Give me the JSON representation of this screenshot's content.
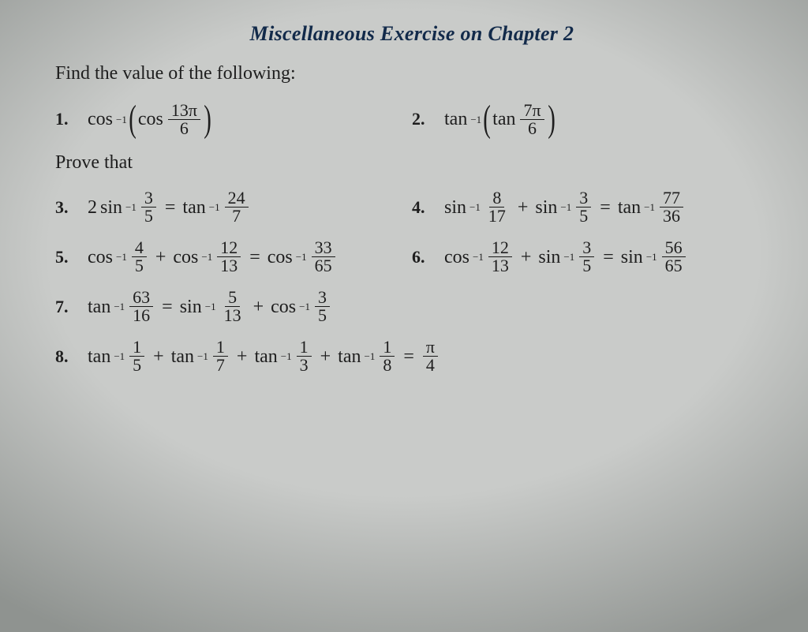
{
  "page": {
    "bg_color": "#c9cbc9",
    "vignette_color": "#8f9390",
    "text_color": "#1e1e1e",
    "title_color": "#122a4a",
    "frac_rule_color": "#1a1a1a"
  },
  "title": "Miscellaneous Exercise on Chapter 2",
  "instruction": "Find the value of the following:",
  "subheading": "Prove that",
  "problems": [
    {
      "n": "1.",
      "parts": [
        {
          "t": "fn",
          "v": "cos"
        },
        {
          "t": "sup",
          "v": "−1"
        },
        {
          "t": "lparen"
        },
        {
          "t": "fn",
          "v": "cos"
        },
        {
          "t": "frac",
          "nu": "13π",
          "de": "6"
        },
        {
          "t": "rparen"
        }
      ]
    },
    {
      "n": "2.",
      "parts": [
        {
          "t": "fn",
          "v": "tan"
        },
        {
          "t": "sup",
          "v": "−1"
        },
        {
          "t": "lparen"
        },
        {
          "t": "fn",
          "v": "tan"
        },
        {
          "t": "frac",
          "nu": "7π",
          "de": "6"
        },
        {
          "t": "rparen"
        }
      ]
    },
    {
      "n": "3.",
      "parts": [
        {
          "t": "txt",
          "v": "2"
        },
        {
          "t": "fn",
          "v": "sin"
        },
        {
          "t": "sup",
          "v": "−1"
        },
        {
          "t": "frac",
          "nu": "3",
          "de": "5"
        },
        {
          "t": "eq",
          "v": "="
        },
        {
          "t": "fn",
          "v": "tan"
        },
        {
          "t": "sup",
          "v": "−1"
        },
        {
          "t": "frac",
          "nu": "24",
          "de": "7"
        }
      ]
    },
    {
      "n": "4.",
      "parts": [
        {
          "t": "fn",
          "v": "sin"
        },
        {
          "t": "sup",
          "v": "−1"
        },
        {
          "t": "frac",
          "nu": "8",
          "de": "17"
        },
        {
          "t": "plus",
          "v": "+"
        },
        {
          "t": "fn",
          "v": "sin"
        },
        {
          "t": "sup",
          "v": "−1"
        },
        {
          "t": "frac",
          "nu": "3",
          "de": "5"
        },
        {
          "t": "eq",
          "v": "="
        },
        {
          "t": "fn",
          "v": "tan"
        },
        {
          "t": "sup",
          "v": "−1"
        },
        {
          "t": "frac",
          "nu": "77",
          "de": "36"
        }
      ]
    },
    {
      "n": "5.",
      "parts": [
        {
          "t": "fn",
          "v": "cos"
        },
        {
          "t": "sup",
          "v": "−1"
        },
        {
          "t": "frac",
          "nu": "4",
          "de": "5"
        },
        {
          "t": "plus",
          "v": "+"
        },
        {
          "t": "fn",
          "v": "cos"
        },
        {
          "t": "sup",
          "v": "−1"
        },
        {
          "t": "frac",
          "nu": "12",
          "de": "13"
        },
        {
          "t": "eq",
          "v": "="
        },
        {
          "t": "fn",
          "v": "cos"
        },
        {
          "t": "sup",
          "v": "−1"
        },
        {
          "t": "frac",
          "nu": "33",
          "de": "65"
        }
      ]
    },
    {
      "n": "6.",
      "parts": [
        {
          "t": "fn",
          "v": "cos"
        },
        {
          "t": "sup",
          "v": "−1"
        },
        {
          "t": "frac",
          "nu": "12",
          "de": "13"
        },
        {
          "t": "plus",
          "v": "+"
        },
        {
          "t": "fn",
          "v": "sin"
        },
        {
          "t": "sup",
          "v": "−1"
        },
        {
          "t": "frac",
          "nu": "3",
          "de": "5"
        },
        {
          "t": "eq",
          "v": "="
        },
        {
          "t": "fn",
          "v": "sin"
        },
        {
          "t": "sup",
          "v": "−1"
        },
        {
          "t": "frac",
          "nu": "56",
          "de": "65"
        }
      ]
    },
    {
      "n": "7.",
      "parts": [
        {
          "t": "fn",
          "v": "tan"
        },
        {
          "t": "sup",
          "v": "−1"
        },
        {
          "t": "frac",
          "nu": "63",
          "de": "16"
        },
        {
          "t": "eq",
          "v": "="
        },
        {
          "t": "fn",
          "v": "sin"
        },
        {
          "t": "sup",
          "v": "−1"
        },
        {
          "t": "frac",
          "nu": "5",
          "de": "13"
        },
        {
          "t": "plus",
          "v": "+"
        },
        {
          "t": "fn",
          "v": "cos"
        },
        {
          "t": "sup",
          "v": "−1"
        },
        {
          "t": "frac",
          "nu": "3",
          "de": "5"
        }
      ]
    },
    {
      "n": "8.",
      "parts": [
        {
          "t": "fn",
          "v": "tan"
        },
        {
          "t": "sup",
          "v": "−1"
        },
        {
          "t": "frac",
          "nu": "1",
          "de": "5"
        },
        {
          "t": "plus",
          "v": "+"
        },
        {
          "t": "fn",
          "v": "tan"
        },
        {
          "t": "sup",
          "v": "−1"
        },
        {
          "t": "frac",
          "nu": "1",
          "de": "7"
        },
        {
          "t": "plus",
          "v": "+"
        },
        {
          "t": "fn",
          "v": "tan"
        },
        {
          "t": "sup",
          "v": "−1"
        },
        {
          "t": "frac",
          "nu": "1",
          "de": "3"
        },
        {
          "t": "plus",
          "v": "+"
        },
        {
          "t": "fn",
          "v": "tan"
        },
        {
          "t": "sup",
          "v": "−1"
        },
        {
          "t": "frac",
          "nu": "1",
          "de": "8"
        },
        {
          "t": "eq",
          "v": "="
        },
        {
          "t": "frac",
          "nu": "π",
          "de": "4"
        }
      ]
    }
  ],
  "layout": {
    "rows": [
      {
        "type": "two",
        "items": [
          0,
          1
        ]
      },
      {
        "type": "subhead"
      },
      {
        "type": "two",
        "items": [
          2,
          3
        ]
      },
      {
        "type": "two",
        "items": [
          4,
          5
        ]
      },
      {
        "type": "one",
        "items": [
          6
        ]
      },
      {
        "type": "one",
        "items": [
          7
        ]
      }
    ]
  }
}
